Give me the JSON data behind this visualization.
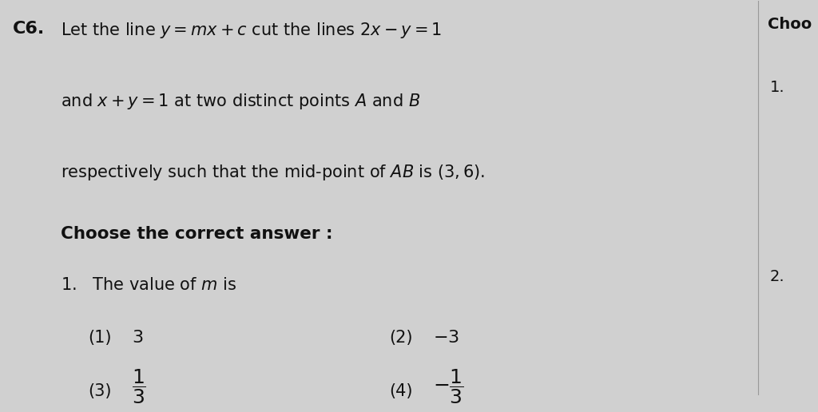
{
  "background_color": "#d0d0d0",
  "text_color": "#111111",
  "question_number": "C6.",
  "problem_text_line1": "Let the line $y = mx + c$ cut the lines $2x - y = 1$",
  "problem_text_line2": "and $x + y = 1$ at two distinct points $A$ and $B$",
  "problem_text_line3": "respectively such that the mid-point of $AB$ is $(3, 6)$.",
  "instruction": "Choose the correct answer :",
  "sub_question": "1.   The value of $m$ is",
  "opt1_label": "(1)",
  "opt1_value": "$3$",
  "opt2_label": "(2)",
  "opt2_value": "$-3$",
  "opt3_label": "(3)",
  "opt3_value": "$\\dfrac{1}{3}$",
  "opt4_label": "(4)",
  "opt4_value": "$-\\dfrac{1}{3}$",
  "right_label_top": "Choo",
  "right_label_1": "1.",
  "right_label_2": "2.",
  "fig_width": 10.24,
  "fig_height": 5.16
}
